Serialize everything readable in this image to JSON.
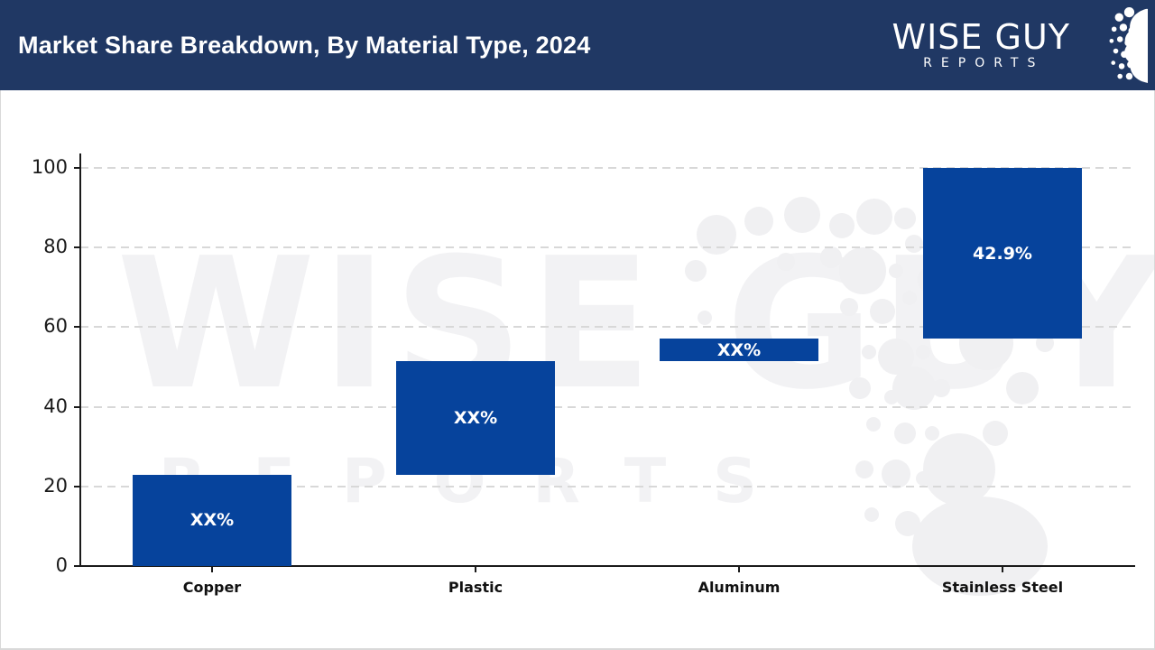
{
  "header": {
    "title": "Market Share Breakdown, By Material Type, 2024",
    "logo": {
      "line1": "WISE GUY",
      "line2": "REPORTS"
    }
  },
  "watermark": {
    "line1": "WISE GUY",
    "line2": "REPORTS"
  },
  "colors": {
    "header_bg": "#203864",
    "bar": "#06439c",
    "grid": "#d8d8d8",
    "axis": "#1a1a1a",
    "bar_label_text": "#ffffff",
    "watermark": "#f2f2f4"
  },
  "chart_data": {
    "type": "bar",
    "subtype": "waterfall",
    "title": "Market Share Breakdown, By Material Type, 2024",
    "xlabel": "",
    "ylabel": "",
    "categories": [
      "Copper",
      "Plastic",
      "Aluminum",
      "Stainless Steel"
    ],
    "series": [
      {
        "name": "Market Share (%)",
        "segments": [
          [
            0,
            22.9
          ],
          [
            22.9,
            51.4
          ],
          [
            51.4,
            57.1
          ],
          [
            57.1,
            100
          ]
        ]
      }
    ],
    "bar_labels": [
      "XX%",
      "XX%",
      "XX%",
      "42.9%"
    ],
    "yticks": [
      0,
      20,
      40,
      60,
      80,
      100
    ],
    "ylim": [
      0,
      100
    ],
    "grid": "horizontal-dashed",
    "legend": "none"
  }
}
